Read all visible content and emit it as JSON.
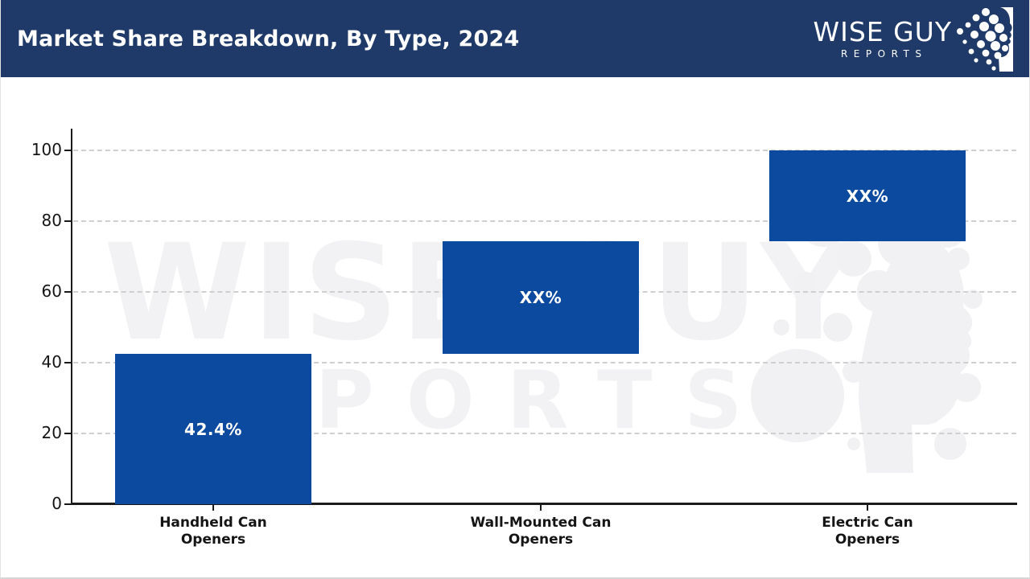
{
  "header": {
    "title": "Market Share Breakdown, By Type, 2024",
    "logo": {
      "wordmark": "WISE GUY",
      "subtext": "REPORTS"
    }
  },
  "watermark": {
    "wordmark": "WISE GUY",
    "subtext": "REPORTS"
  },
  "colors": {
    "header_bg": "#1f3a68",
    "bar_fill": "#0c4aa0",
    "bar_label": "#ffffff",
    "gridline": "#cfcfcf",
    "axis": "#1a1a1a",
    "watermark": "#f2f2f4"
  },
  "chart_data": {
    "type": "bar",
    "variant": "floating-stacked-percentage",
    "title": "Market Share Breakdown, By Type, 2024",
    "categories": [
      "Handheld Can Openers",
      "Wall-Mounted Can Openers",
      "Electric Can Openers"
    ],
    "category_lines": [
      [
        "Handheld Can",
        "Openers"
      ],
      [
        "Wall-Mounted Can",
        "Openers"
      ],
      [
        "Electric Can",
        "Openers"
      ]
    ],
    "segments": [
      {
        "category": "Handheld Can Openers",
        "start": 0,
        "end": 42.4,
        "label": "42.4%"
      },
      {
        "category": "Wall-Mounted Can Openers",
        "start": 42.4,
        "end": 74.3,
        "label": "XX%"
      },
      {
        "category": "Electric Can Openers",
        "start": 74.3,
        "end": 100,
        "label": "XX%"
      }
    ],
    "ylim": [
      0,
      100
    ],
    "yticks": [
      0,
      20,
      40,
      60,
      80,
      100
    ],
    "grid": true,
    "legend": false,
    "xlabel": "",
    "ylabel": ""
  }
}
